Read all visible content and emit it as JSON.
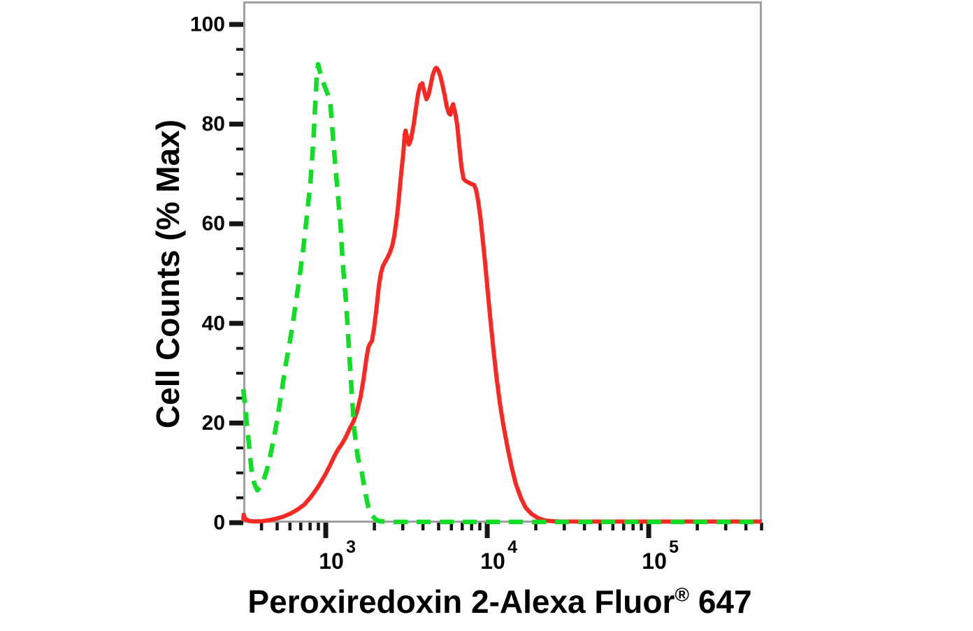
{
  "chart_data": {
    "type": "line",
    "subtype": "flow-cytometry-histogram-overlay",
    "xlabel": {
      "pre": "Peroxiredoxin 2-Alexa Fluor",
      "sup": "®",
      "post": " 647"
    },
    "ylabel": "Cell Counts (% Max)",
    "x_scale": "log10",
    "xlim_log": [
      2.489,
      5.701
    ],
    "ylim": [
      0,
      104.6
    ],
    "x_major_ticks_log": [
      3,
      4,
      5
    ],
    "x_decade_labels": [
      {
        "base": "10",
        "exp": "3"
      },
      {
        "base": "10",
        "exp": "4"
      },
      {
        "base": "10",
        "exp": "5"
      }
    ],
    "x_minor_decades": [
      2,
      3,
      4,
      5
    ],
    "x_minor_mantissas": [
      2,
      3,
      4,
      5,
      6,
      7,
      8,
      9
    ],
    "y_major_ticks": [
      0,
      20,
      40,
      60,
      80,
      100
    ],
    "y_tick_labels": [
      "0",
      "20",
      "40",
      "60",
      "80",
      "100"
    ],
    "y_minor_step": 5,
    "grid": false,
    "legend": "none",
    "background": "#ffffff",
    "axis_color": "#a0a0a0",
    "tick_color": "#161616",
    "text_color": "#000000",
    "series": [
      {
        "name": "red-solid",
        "color": "#fa2823",
        "width": 6,
        "dash": null,
        "points": [
          [
            2.489,
            0.3
          ],
          [
            2.491,
            1.6
          ],
          [
            2.502,
            0.7
          ],
          [
            2.524,
            0.35
          ],
          [
            2.563,
            0.25
          ],
          [
            2.606,
            0.3
          ],
          [
            2.649,
            0.5
          ],
          [
            2.693,
            0.8
          ],
          [
            2.736,
            1.2
          ],
          [
            2.779,
            1.8
          ],
          [
            2.823,
            2.6
          ],
          [
            2.866,
            3.6
          ],
          [
            2.909,
            5.2
          ],
          [
            2.952,
            7.2
          ],
          [
            2.996,
            9.6
          ],
          [
            3.026,
            11.5
          ],
          [
            3.052,
            13.3
          ],
          [
            3.078,
            14.8
          ],
          [
            3.1,
            15.8
          ],
          [
            3.121,
            17.0
          ],
          [
            3.147,
            18.8
          ],
          [
            3.173,
            20.4
          ],
          [
            3.195,
            22.5
          ],
          [
            3.216,
            25.3
          ],
          [
            3.234,
            28.8
          ],
          [
            3.251,
            32.8
          ],
          [
            3.263,
            35.1
          ],
          [
            3.272,
            35.8
          ],
          [
            3.286,
            36.5
          ],
          [
            3.299,
            39.0
          ],
          [
            3.316,
            43.5
          ],
          [
            3.329,
            47.5
          ],
          [
            3.342,
            50.2
          ],
          [
            3.355,
            51.6
          ],
          [
            3.372,
            52.6
          ],
          [
            3.394,
            54.0
          ],
          [
            3.411,
            55.5
          ],
          [
            3.424,
            57.5
          ],
          [
            3.437,
            60.5
          ],
          [
            3.446,
            63.0
          ],
          [
            3.455,
            66.0
          ],
          [
            3.468,
            70.5
          ],
          [
            3.481,
            74.5
          ],
          [
            3.489,
            78.0
          ],
          [
            3.494,
            78.7
          ],
          [
            3.502,
            77.6
          ],
          [
            3.515,
            75.9
          ],
          [
            3.528,
            77.0
          ],
          [
            3.545,
            80.0
          ],
          [
            3.558,
            83.0
          ],
          [
            3.571,
            86.0
          ],
          [
            3.584,
            87.8
          ],
          [
            3.597,
            88.2
          ],
          [
            3.61,
            86.5
          ],
          [
            3.623,
            85.0
          ],
          [
            3.636,
            85.8
          ],
          [
            3.649,
            87.8
          ],
          [
            3.662,
            89.8
          ],
          [
            3.675,
            91.0
          ],
          [
            3.684,
            91.3
          ],
          [
            3.697,
            90.8
          ],
          [
            3.71,
            89.6
          ],
          [
            3.723,
            87.8
          ],
          [
            3.736,
            85.8
          ],
          [
            3.749,
            83.5
          ],
          [
            3.762,
            82.2
          ],
          [
            3.771,
            81.9
          ],
          [
            3.779,
            83.2
          ],
          [
            3.788,
            84.0
          ],
          [
            3.801,
            82.3
          ],
          [
            3.814,
            79.8
          ],
          [
            3.827,
            75.5
          ],
          [
            3.84,
            71.5
          ],
          [
            3.853,
            69.0
          ],
          [
            3.866,
            68.6
          ],
          [
            3.883,
            68.3
          ],
          [
            3.9,
            68.0
          ],
          [
            3.918,
            67.8
          ],
          [
            3.931,
            66.8
          ],
          [
            3.944,
            64.5
          ],
          [
            3.957,
            61.5
          ],
          [
            3.97,
            57.5
          ],
          [
            3.987,
            52.0
          ],
          [
            4.004,
            46.0
          ],
          [
            4.022,
            40.0
          ],
          [
            4.039,
            34.5
          ],
          [
            4.056,
            29.5
          ],
          [
            4.078,
            24.0
          ],
          [
            4.1,
            19.5
          ],
          [
            4.126,
            15.0
          ],
          [
            4.152,
            11.0
          ],
          [
            4.177,
            7.8
          ],
          [
            4.208,
            5.0
          ],
          [
            4.238,
            3.0
          ],
          [
            4.273,
            1.8
          ],
          [
            4.316,
            0.9
          ],
          [
            4.359,
            0.45
          ],
          [
            4.403,
            0.3
          ],
          [
            4.446,
            0.25
          ],
          [
            4.7,
            0.22
          ],
          [
            5.0,
            0.22
          ],
          [
            5.3,
            0.22
          ],
          [
            5.701,
            0.22
          ]
        ]
      },
      {
        "name": "green-dashed",
        "color": "#0edf25",
        "width": 6.5,
        "dash": [
          20,
          13
        ],
        "points": [
          [
            2.489,
            26.8
          ],
          [
            2.506,
            21.5
          ],
          [
            2.524,
            15.8
          ],
          [
            2.541,
            10.2
          ],
          [
            2.558,
            7.8
          ],
          [
            2.576,
            6.5
          ],
          [
            2.593,
            7.2
          ],
          [
            2.615,
            8.6
          ],
          [
            2.636,
            10.7
          ],
          [
            2.658,
            13.7
          ],
          [
            2.68,
            17.2
          ],
          [
            2.701,
            21.0
          ],
          [
            2.727,
            26.5
          ],
          [
            2.753,
            31.9
          ],
          [
            2.779,
            36.6
          ],
          [
            2.805,
            42.0
          ],
          [
            2.831,
            47.8
          ],
          [
            2.857,
            54.0
          ],
          [
            2.883,
            61.5
          ],
          [
            2.905,
            68.4
          ],
          [
            2.922,
            76.0
          ],
          [
            2.935,
            84.0
          ],
          [
            2.944,
            89.5
          ],
          [
            2.952,
            92.0
          ],
          [
            2.965,
            90.3
          ],
          [
            2.983,
            88.5
          ],
          [
            3.0,
            87.0
          ],
          [
            3.017,
            85.6
          ],
          [
            3.026,
            85.0
          ],
          [
            3.048,
            76.0
          ],
          [
            3.069,
            68.0
          ],
          [
            3.091,
            60.0
          ],
          [
            3.104,
            52.5
          ],
          [
            3.126,
            44.0
          ],
          [
            3.143,
            35.0
          ],
          [
            3.16,
            26.5
          ],
          [
            3.177,
            18.5
          ],
          [
            3.199,
            13.0
          ],
          [
            3.221,
            10.5
          ],
          [
            3.242,
            6.5
          ],
          [
            3.264,
            3.0
          ],
          [
            3.286,
            1.5
          ],
          [
            3.307,
            0.7
          ],
          [
            3.333,
            0.3
          ],
          [
            3.4,
            0.15
          ],
          [
            3.7,
            0.15
          ],
          [
            4.0,
            0.15
          ],
          [
            4.3,
            0.15
          ],
          [
            4.6,
            0.15
          ],
          [
            4.9,
            0.15
          ],
          [
            5.2,
            0.15
          ],
          [
            5.5,
            0.15
          ],
          [
            5.701,
            0.15
          ]
        ]
      }
    ]
  }
}
